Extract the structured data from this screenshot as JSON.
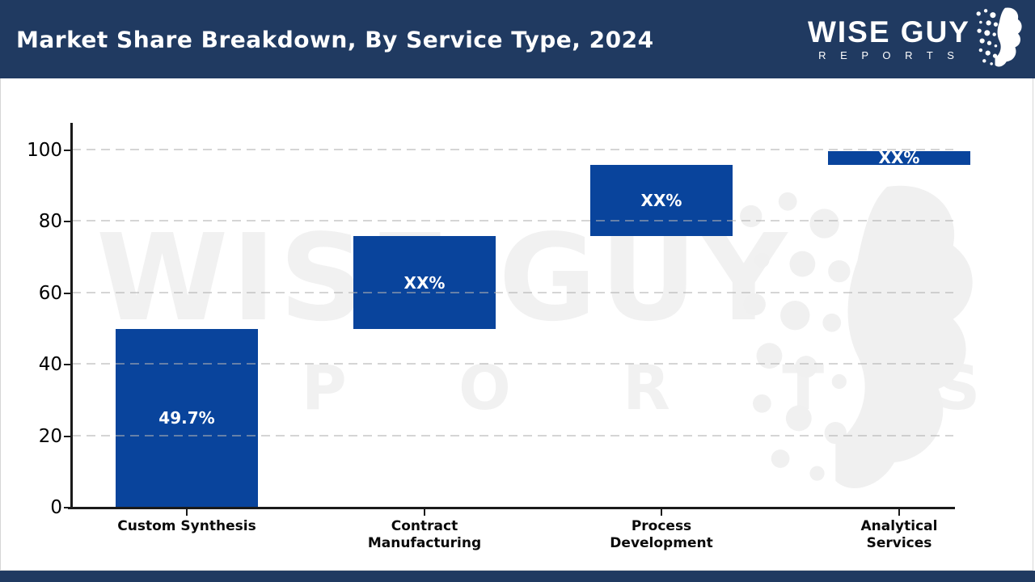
{
  "header": {
    "title": "Market Share Breakdown, By Service Type, 2024",
    "logo": {
      "line1": "WISE GUY",
      "line2": "R E P O R T S"
    }
  },
  "watermark": {
    "line1": "WISE GUY",
    "line2": "P O R T S"
  },
  "chart_data": {
    "type": "bar",
    "subtype": "waterfall",
    "title": "Market Share Breakdown, By Service Type, 2024",
    "categories": [
      "Custom Synthesis",
      "Contract\nManufacturing",
      "Process\nDevelopment",
      "Analytical\nServices"
    ],
    "segments": [
      {
        "category": "Custom Synthesis",
        "start": 0,
        "end": 49.7,
        "label": "49.7%"
      },
      {
        "category": "Contract Manufacturing",
        "start": 49.7,
        "end": 75.8,
        "label": "XX%"
      },
      {
        "category": "Process Development",
        "start": 75.8,
        "end": 95.7,
        "label": "XX%"
      },
      {
        "category": "Analytical Services",
        "start": 95.7,
        "end": 99.6,
        "label": "XX%"
      }
    ],
    "yticks": [
      0,
      20,
      40,
      60,
      80,
      100
    ],
    "gridlines": [
      20,
      40,
      60,
      80,
      100
    ],
    "ylim": [
      0,
      107
    ],
    "xlabel": "",
    "ylabel": "",
    "legend": null,
    "grid": "horizontal-dashed",
    "bar_color": "#09449c",
    "bar_label_color": "#ffffff"
  },
  "colors": {
    "header_bg": "#203a61",
    "footer_bg": "#203a61",
    "bar": "#09449c",
    "axis": "#1a1a1a",
    "watermark": "#f1f1f1"
  }
}
